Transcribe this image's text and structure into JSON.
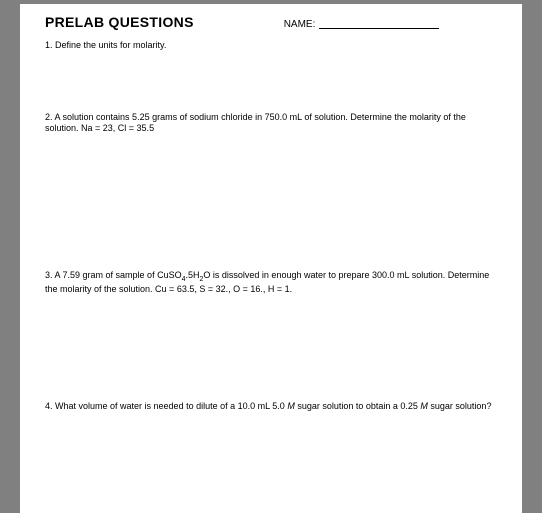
{
  "document": {
    "header_small": "",
    "title": "PRELAB QUESTIONS",
    "name_label": "NAME:",
    "questions": {
      "q1": "1. Define the units for molarity.",
      "q2": "2. A solution contains 5.25 grams of sodium chloride in 750.0 mL of solution. Determine the molarity of the solution. Na = 23, Cl = 35.5",
      "q3_part1": "3. A 7.59 gram of sample of CuSO",
      "q3_sub1": "4",
      "q3_part2": ".5H",
      "q3_sub2": "2",
      "q3_part3": "O is dissolved in enough water to prepare 300.0 mL solution. Determine the molarity of the solution. Cu = 63.5, S = 32., O = 16., H = 1.",
      "q4_part1": "4. What volume of water is needed to dilute of a 10.0 mL 5.0 ",
      "q4_italic1": "M",
      "q4_part2": " sugar solution to obtain a 0.25 ",
      "q4_italic2": "M",
      "q4_part3": " sugar solution?"
    },
    "styling": {
      "page_background": "#808080",
      "sheet_background": "#ffffff",
      "text_color": "#000000",
      "title_fontsize": 14,
      "body_fontsize": 9,
      "font_family": "Arial"
    }
  }
}
